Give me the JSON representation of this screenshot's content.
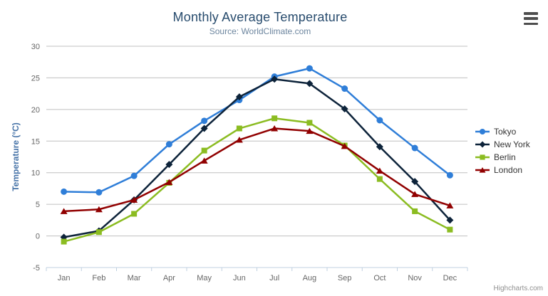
{
  "chart_data": {
    "type": "line",
    "title": "Monthly Average Temperature",
    "subtitle": "Source: WorldClimate.com",
    "categories": [
      "Jan",
      "Feb",
      "Mar",
      "Apr",
      "May",
      "Jun",
      "Jul",
      "Aug",
      "Sep",
      "Oct",
      "Nov",
      "Dec"
    ],
    "series": [
      {
        "name": "Tokyo",
        "color": "#2f7ed8",
        "marker": "circle",
        "values": [
          7.0,
          6.9,
          9.5,
          14.5,
          18.2,
          21.5,
          25.2,
          26.5,
          23.3,
          18.3,
          13.9,
          9.6
        ]
      },
      {
        "name": "New York",
        "color": "#0d233a",
        "marker": "diamond",
        "values": [
          -0.2,
          0.8,
          5.7,
          11.3,
          17.0,
          22.0,
          24.8,
          24.1,
          20.1,
          14.1,
          8.6,
          2.5
        ]
      },
      {
        "name": "Berlin",
        "color": "#8bbc21",
        "marker": "square",
        "values": [
          -0.9,
          0.6,
          3.5,
          8.4,
          13.5,
          17.0,
          18.6,
          17.9,
          14.3,
          9.0,
          3.9,
          1.0
        ]
      },
      {
        "name": "London",
        "color": "#910000",
        "marker": "triangle",
        "values": [
          3.9,
          4.2,
          5.7,
          8.5,
          11.9,
          15.2,
          17.0,
          16.6,
          14.2,
          10.3,
          6.6,
          4.8
        ]
      }
    ],
    "xlabel": "",
    "ylabel": "Temperature (°C)",
    "ylim": [
      -5,
      30
    ],
    "ytick_interval": 5,
    "ytick_labels": [
      "-5",
      "0",
      "5",
      "10",
      "15",
      "20",
      "25",
      "30"
    ],
    "grid": true,
    "legend_position": "right",
    "colors": {
      "grid_line": "#C0C0C0",
      "axis_line": "#C0D0E0",
      "tick_label": "#666666",
      "axis_title": "#4572A7",
      "title": "#274b6d",
      "subtitle": "#6D869F",
      "legend_text": "#333333",
      "credit": "#909090"
    }
  },
  "credit": "Highcharts.com",
  "menu": {
    "icon": "hamburger-menu-icon"
  }
}
